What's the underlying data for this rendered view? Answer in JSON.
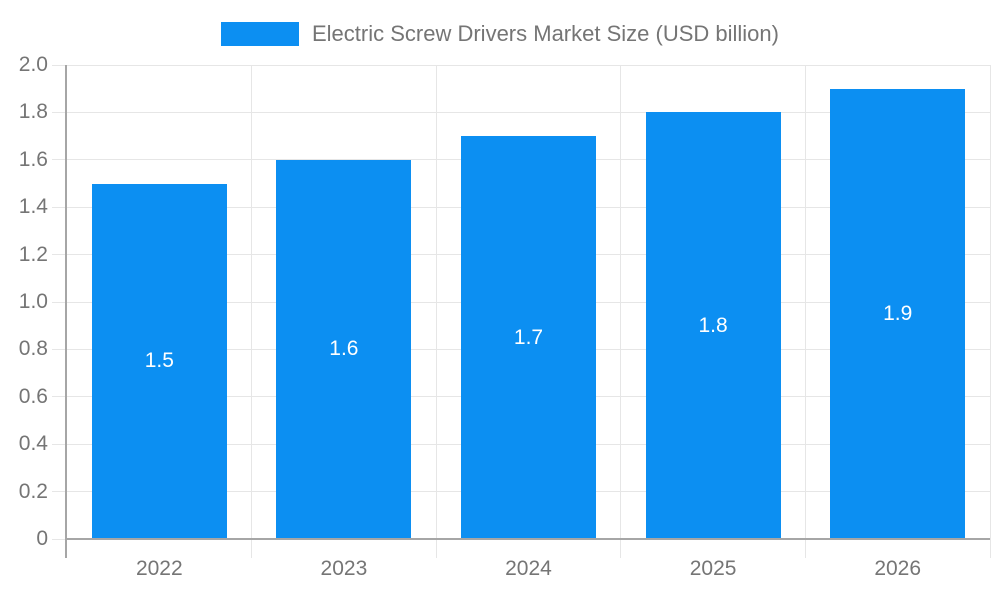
{
  "legend": {
    "label": "Electric Screw Drivers Market Size (USD billion)",
    "swatch_icon": "legend-series-swatch"
  },
  "colors": {
    "bar": "#0c8ff2",
    "grid": "#e6e6e6",
    "axis": "#a6a6a6",
    "text": "#757575",
    "value_label": "#ffffff",
    "background": "#ffffff"
  },
  "chart_data": {
    "type": "bar",
    "title": "Electric Screw Drivers Market Size (USD billion)",
    "categories": [
      "2022",
      "2023",
      "2024",
      "2025",
      "2026"
    ],
    "values": [
      1.5,
      1.6,
      1.7,
      1.8,
      1.9
    ],
    "value_labels": [
      "1.5",
      "1.6",
      "1.7",
      "1.8",
      "1.9"
    ],
    "xlabel": "",
    "ylabel": "",
    "ylim": [
      0,
      2.0
    ],
    "ytick_values": [
      0,
      0.2,
      0.4,
      0.6,
      0.8,
      1.0,
      1.2,
      1.4,
      1.6,
      1.8,
      2.0
    ],
    "ytick_labels": [
      "0",
      "0.2",
      "0.4",
      "0.6",
      "0.8",
      "1.0",
      "1.2",
      "1.4",
      "1.6",
      "1.8",
      "2.0"
    ],
    "grid": true,
    "legend_position": "top",
    "value_label_position": "center-of-bar"
  }
}
